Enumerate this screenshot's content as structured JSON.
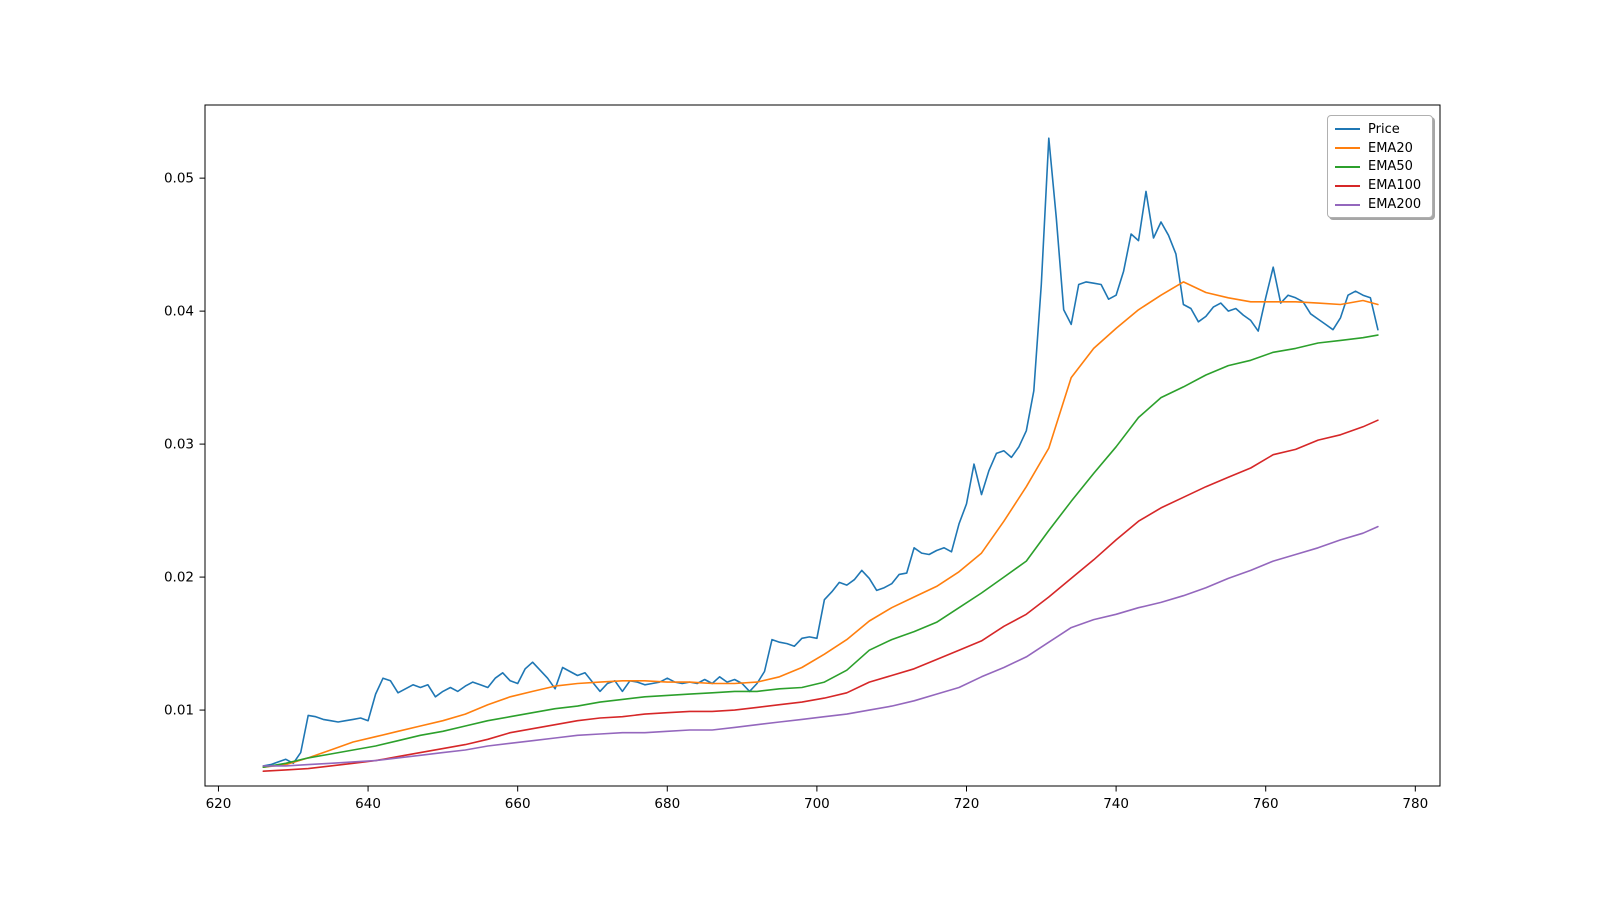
{
  "figure": {
    "background": "#ffffff"
  },
  "chart_data": {
    "type": "line",
    "title": "",
    "xlabel": "",
    "ylabel": "",
    "grid": false,
    "legend_position": "upper right",
    "xlim": [
      618.2,
      783.3
    ],
    "ylim": [
      0.00429,
      0.0555
    ],
    "x_ticks": [
      620,
      640,
      660,
      680,
      700,
      720,
      740,
      760,
      780
    ],
    "y_ticks": [
      0.01,
      0.02,
      0.03,
      0.04,
      0.05
    ],
    "series": [
      {
        "name": "Price",
        "color": "#1f77b4",
        "x": [
          626,
          627,
          628,
          629,
          630,
          631,
          632,
          633,
          634,
          635,
          636,
          637,
          638,
          639,
          640,
          641,
          642,
          643,
          644,
          645,
          646,
          647,
          648,
          649,
          650,
          651,
          652,
          653,
          654,
          655,
          656,
          657,
          658,
          659,
          660,
          661,
          662,
          663,
          664,
          665,
          666,
          667,
          668,
          669,
          670,
          671,
          672,
          673,
          674,
          675,
          676,
          677,
          678,
          679,
          680,
          681,
          682,
          683,
          684,
          685,
          686,
          687,
          688,
          689,
          690,
          691,
          692,
          693,
          694,
          695,
          696,
          697,
          698,
          699,
          700,
          701,
          702,
          703,
          704,
          705,
          706,
          707,
          708,
          709,
          710,
          711,
          712,
          713,
          714,
          715,
          716,
          717,
          718,
          719,
          720,
          721,
          722,
          723,
          724,
          725,
          726,
          727,
          728,
          729,
          730,
          731,
          732,
          733,
          734,
          735,
          736,
          737,
          738,
          739,
          740,
          741,
          742,
          743,
          744,
          745,
          746,
          747,
          748,
          749,
          750,
          751,
          752,
          753,
          754,
          755,
          756,
          757,
          758,
          759,
          760,
          761,
          762,
          763,
          764,
          765,
          766,
          767,
          768,
          769,
          770,
          771,
          772,
          773,
          774,
          775
        ],
        "values": [
          0.0058,
          0.0059,
          0.0061,
          0.0063,
          0.006,
          0.0068,
          0.0096,
          0.0095,
          0.0093,
          0.0092,
          0.0091,
          0.0092,
          0.0093,
          0.0094,
          0.0092,
          0.0112,
          0.0124,
          0.0122,
          0.0113,
          0.0116,
          0.0119,
          0.0117,
          0.0119,
          0.011,
          0.0114,
          0.0117,
          0.0114,
          0.0118,
          0.0121,
          0.0119,
          0.0117,
          0.0124,
          0.0128,
          0.0122,
          0.012,
          0.0131,
          0.0136,
          0.013,
          0.0124,
          0.0116,
          0.0132,
          0.0129,
          0.0126,
          0.0128,
          0.0121,
          0.0114,
          0.012,
          0.0122,
          0.0114,
          0.0122,
          0.0121,
          0.0119,
          0.012,
          0.0121,
          0.0124,
          0.0121,
          0.012,
          0.0121,
          0.012,
          0.0123,
          0.012,
          0.0125,
          0.0121,
          0.0123,
          0.012,
          0.0114,
          0.012,
          0.0129,
          0.0153,
          0.0151,
          0.015,
          0.0148,
          0.0154,
          0.0155,
          0.0154,
          0.0183,
          0.0189,
          0.0196,
          0.0194,
          0.0198,
          0.0205,
          0.0199,
          0.019,
          0.0192,
          0.0195,
          0.0202,
          0.0203,
          0.0222,
          0.0218,
          0.0217,
          0.022,
          0.0222,
          0.0219,
          0.024,
          0.0255,
          0.0285,
          0.0262,
          0.028,
          0.0293,
          0.0295,
          0.029,
          0.0298,
          0.031,
          0.034,
          0.042,
          0.053,
          0.047,
          0.0401,
          0.039,
          0.042,
          0.0422,
          0.0421,
          0.042,
          0.0409,
          0.0412,
          0.043,
          0.0458,
          0.0453,
          0.049,
          0.0455,
          0.0467,
          0.0457,
          0.0443,
          0.0405,
          0.0402,
          0.0392,
          0.0396,
          0.0403,
          0.0406,
          0.04,
          0.0402,
          0.0397,
          0.0393,
          0.0385,
          0.041,
          0.0433,
          0.0406,
          0.0412,
          0.041,
          0.0407,
          0.0398,
          0.0394,
          0.039,
          0.0386,
          0.0395,
          0.0412,
          0.0415,
          0.0412,
          0.041,
          0.0386
        ]
      },
      {
        "name": "EMA20",
        "color": "#ff7f0e",
        "x": [
          626,
          629,
          632,
          635,
          638,
          641,
          644,
          647,
          650,
          653,
          656,
          659,
          662,
          665,
          668,
          671,
          674,
          677,
          680,
          683,
          686,
          689,
          692,
          695,
          698,
          701,
          704,
          707,
          710,
          713,
          716,
          719,
          722,
          725,
          728,
          731,
          734,
          737,
          740,
          743,
          746,
          749,
          752,
          755,
          758,
          761,
          764,
          767,
          770,
          773,
          775
        ],
        "values": [
          0.0057,
          0.0059,
          0.0064,
          0.007,
          0.0076,
          0.008,
          0.0084,
          0.0088,
          0.0092,
          0.0097,
          0.0104,
          0.011,
          0.0114,
          0.0118,
          0.012,
          0.0121,
          0.0122,
          0.0122,
          0.0121,
          0.0121,
          0.012,
          0.012,
          0.0121,
          0.0125,
          0.0132,
          0.0142,
          0.0153,
          0.0167,
          0.0177,
          0.0185,
          0.0193,
          0.0204,
          0.0218,
          0.0242,
          0.0268,
          0.0297,
          0.035,
          0.0372,
          0.0387,
          0.0401,
          0.0412,
          0.0422,
          0.0414,
          0.041,
          0.0407,
          0.0407,
          0.0407,
          0.0406,
          0.0405,
          0.0408,
          0.0405
        ]
      },
      {
        "name": "EMA50",
        "color": "#2ca02c",
        "x": [
          626,
          629,
          632,
          635,
          638,
          641,
          644,
          647,
          650,
          653,
          656,
          659,
          662,
          665,
          668,
          671,
          674,
          677,
          680,
          683,
          686,
          689,
          692,
          695,
          698,
          701,
          704,
          707,
          710,
          713,
          716,
          719,
          722,
          725,
          728,
          731,
          734,
          737,
          740,
          743,
          746,
          749,
          752,
          755,
          758,
          761,
          764,
          767,
          770,
          773,
          775
        ],
        "values": [
          0.0057,
          0.006,
          0.0064,
          0.0067,
          0.007,
          0.0073,
          0.0077,
          0.0081,
          0.0084,
          0.0088,
          0.0092,
          0.0095,
          0.0098,
          0.0101,
          0.0103,
          0.0106,
          0.0108,
          0.011,
          0.0111,
          0.0112,
          0.0113,
          0.0114,
          0.0114,
          0.0116,
          0.0117,
          0.0121,
          0.013,
          0.0145,
          0.0153,
          0.0159,
          0.0166,
          0.0177,
          0.0188,
          0.02,
          0.0212,
          0.0235,
          0.0257,
          0.0278,
          0.0298,
          0.032,
          0.0335,
          0.0343,
          0.0352,
          0.0359,
          0.0363,
          0.0369,
          0.0372,
          0.0376,
          0.0378,
          0.038,
          0.0382
        ]
      },
      {
        "name": "EMA100",
        "color": "#d62728",
        "x": [
          626,
          629,
          632,
          635,
          638,
          641,
          644,
          647,
          650,
          653,
          656,
          659,
          662,
          665,
          668,
          671,
          674,
          677,
          680,
          683,
          686,
          689,
          692,
          695,
          698,
          701,
          704,
          707,
          710,
          713,
          716,
          719,
          722,
          725,
          728,
          731,
          734,
          737,
          740,
          743,
          746,
          749,
          752,
          755,
          758,
          761,
          764,
          767,
          770,
          773,
          775
        ],
        "values": [
          0.0054,
          0.0055,
          0.0056,
          0.0058,
          0.006,
          0.0062,
          0.0065,
          0.0068,
          0.0071,
          0.0074,
          0.0078,
          0.0083,
          0.0086,
          0.0089,
          0.0092,
          0.0094,
          0.0095,
          0.0097,
          0.0098,
          0.0099,
          0.0099,
          0.01,
          0.0102,
          0.0104,
          0.0106,
          0.0109,
          0.0113,
          0.0121,
          0.0126,
          0.0131,
          0.0138,
          0.0145,
          0.0152,
          0.0163,
          0.0172,
          0.0185,
          0.0199,
          0.0213,
          0.0228,
          0.0242,
          0.0252,
          0.026,
          0.0268,
          0.0275,
          0.0282,
          0.0292,
          0.0296,
          0.0303,
          0.0307,
          0.0313,
          0.0318
        ]
      },
      {
        "name": "EMA200",
        "color": "#9467bd",
        "x": [
          626,
          629,
          632,
          635,
          638,
          641,
          644,
          647,
          650,
          653,
          656,
          659,
          662,
          665,
          668,
          671,
          674,
          677,
          680,
          683,
          686,
          689,
          692,
          695,
          698,
          701,
          704,
          707,
          710,
          713,
          716,
          719,
          722,
          725,
          728,
          731,
          734,
          737,
          740,
          743,
          746,
          749,
          752,
          755,
          758,
          761,
          764,
          767,
          770,
          773,
          775
        ],
        "values": [
          0.0058,
          0.0058,
          0.0059,
          0.006,
          0.0061,
          0.0062,
          0.0064,
          0.0066,
          0.0068,
          0.007,
          0.0073,
          0.0075,
          0.0077,
          0.0079,
          0.0081,
          0.0082,
          0.0083,
          0.0083,
          0.0084,
          0.0085,
          0.0085,
          0.0087,
          0.0089,
          0.0091,
          0.0093,
          0.0095,
          0.0097,
          0.01,
          0.0103,
          0.0107,
          0.0112,
          0.0117,
          0.0125,
          0.0132,
          0.014,
          0.0151,
          0.0162,
          0.0168,
          0.0172,
          0.0177,
          0.0181,
          0.0186,
          0.0192,
          0.0199,
          0.0205,
          0.0212,
          0.0217,
          0.0222,
          0.0228,
          0.0233,
          0.0238
        ]
      }
    ]
  }
}
